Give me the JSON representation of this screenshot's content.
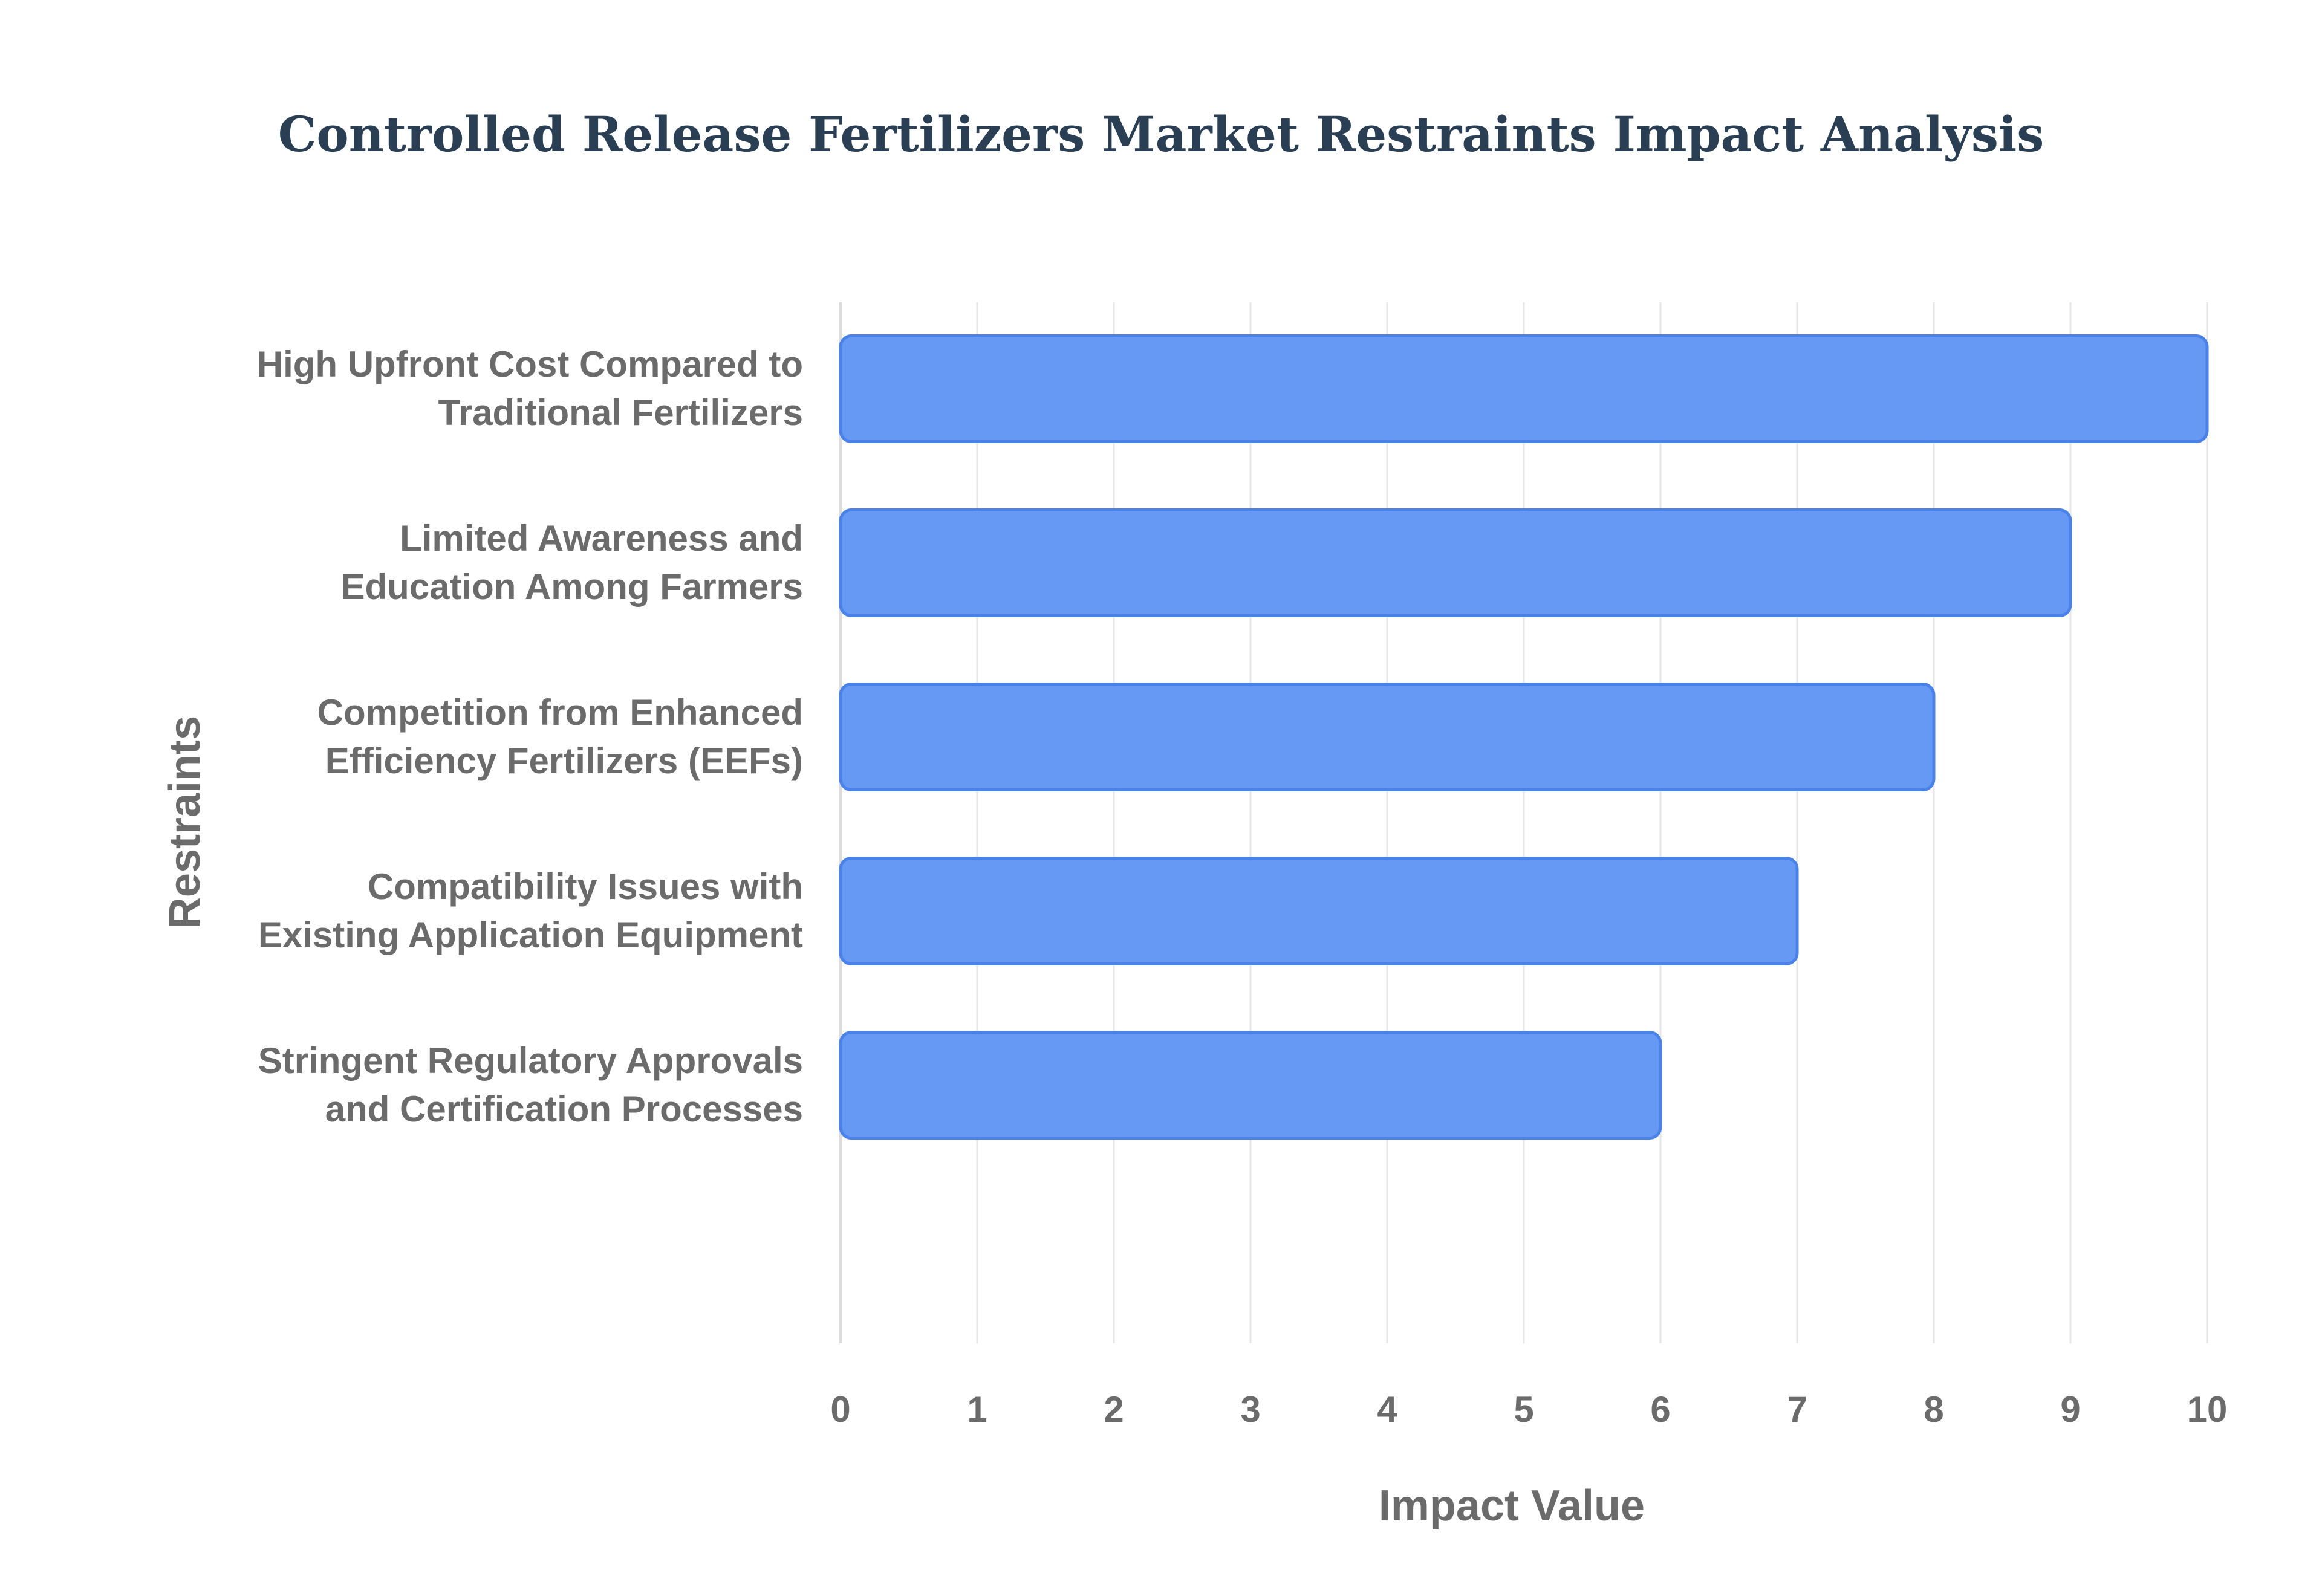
{
  "chart_data": {
    "type": "bar",
    "orientation": "horizontal",
    "title": "Controlled Release Fertilizers Market Restraints Impact Analysis",
    "xlabel": "Impact Value",
    "ylabel": "Restraints",
    "xlim": [
      0,
      10
    ],
    "x_ticks": [
      "0",
      "1",
      "2",
      "3",
      "4",
      "5",
      "6",
      "7",
      "8",
      "9",
      "10"
    ],
    "grid": true,
    "legend": "none",
    "categories": [
      [
        "High Upfront Cost Compared to",
        "Traditional Fertilizers"
      ],
      [
        "Limited Awareness and",
        "Education Among Farmers"
      ],
      [
        "Competition from Enhanced",
        "Efficiency Fertilizers (EEFs)"
      ],
      [
        "Compatibility Issues with",
        "Existing Application Equipment"
      ],
      [
        "Stringent Regulatory Approvals",
        "and Certification Processes"
      ]
    ],
    "values": [
      10,
      9,
      8,
      7,
      6
    ],
    "bar_color": "#6699f4",
    "bar_edge_color": "#4a82e8",
    "title_color": "#2a3f54",
    "text_color": "#6b6b6b"
  }
}
